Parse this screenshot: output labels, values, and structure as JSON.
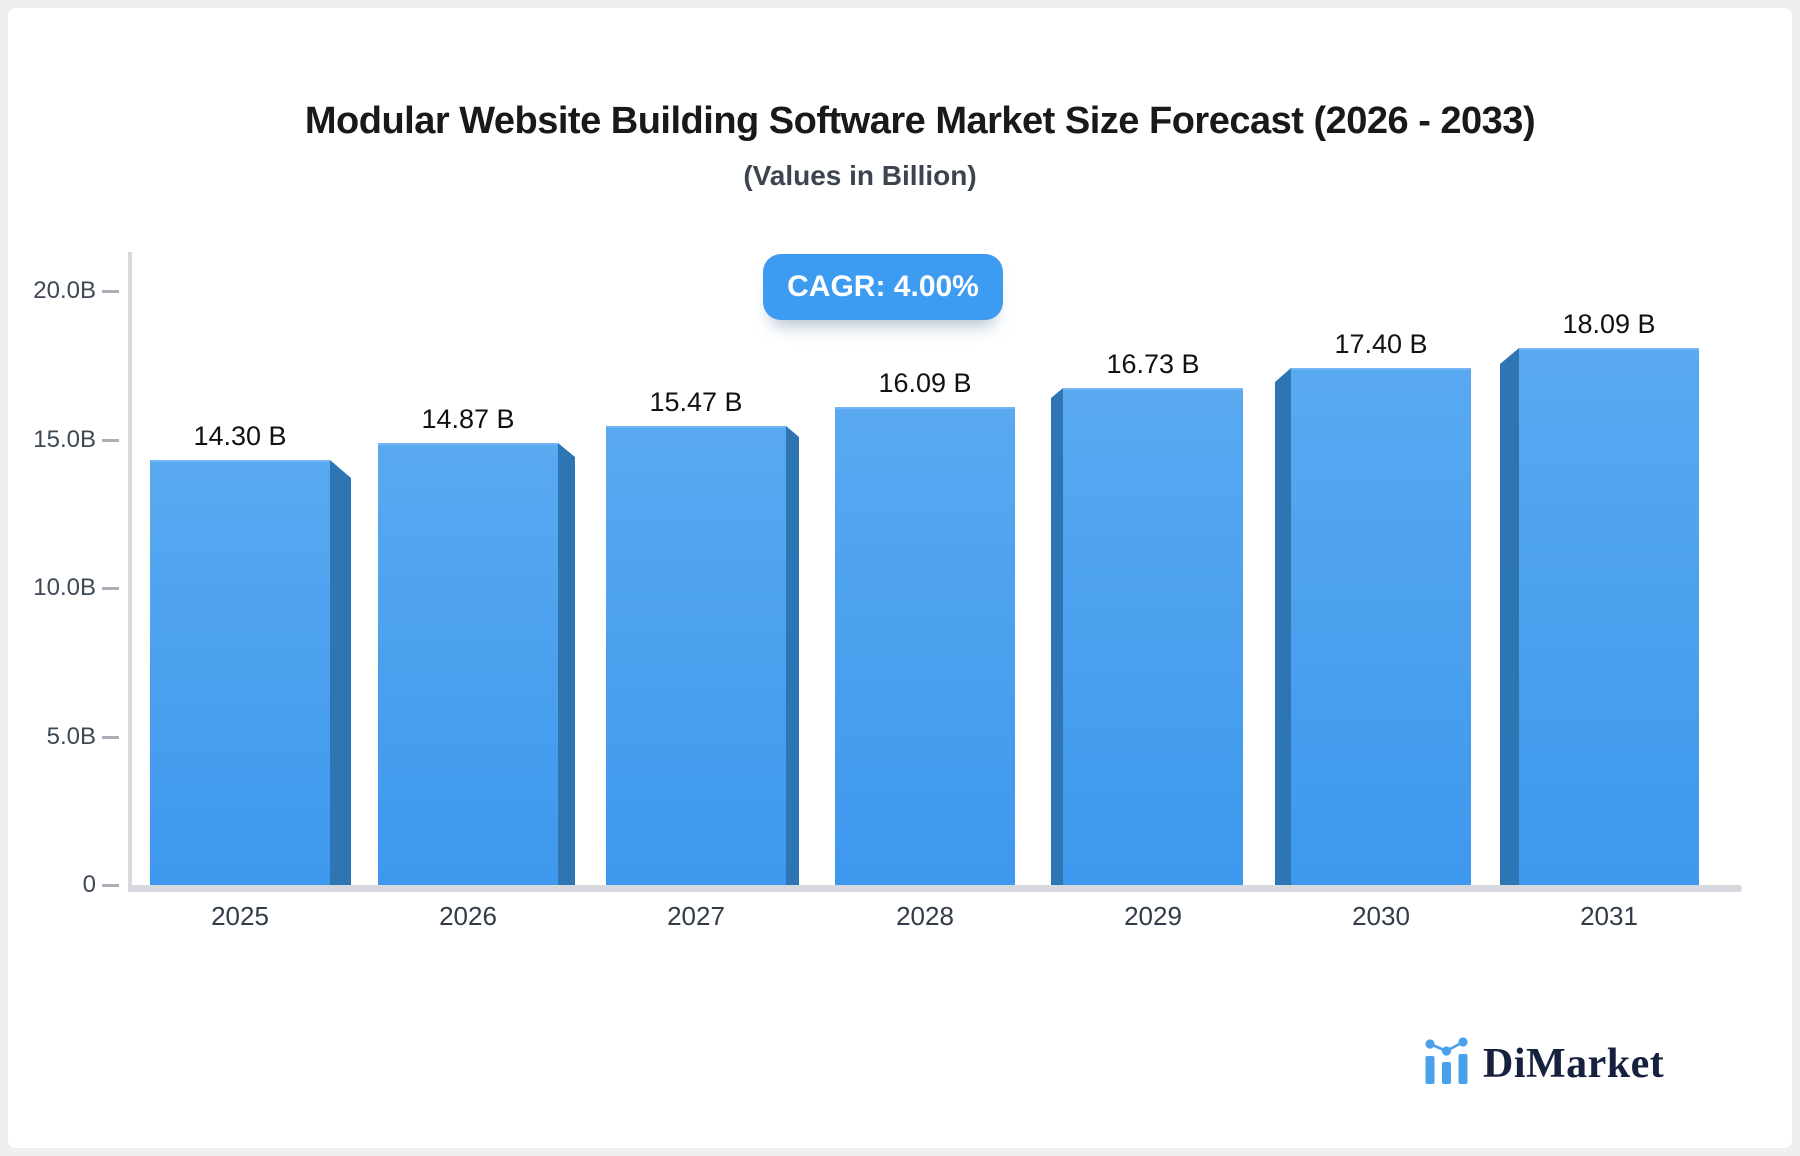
{
  "brand": {
    "name": "DiMarket"
  },
  "chart_data": {
    "type": "bar",
    "title": "Modular Website Building Software Market Size Forecast (2026 - 2033)",
    "subtitle": "(Values in Billion)",
    "annotation": "CAGR: 4.00%",
    "categories": [
      "2025",
      "2026",
      "2027",
      "2028",
      "2029",
      "2030",
      "2031"
    ],
    "values": [
      14.3,
      14.87,
      15.47,
      16.09,
      16.73,
      17.4,
      18.09
    ],
    "value_labels": [
      "14.30 B",
      "14.87 B",
      "15.47 B",
      "16.09 B",
      "16.73 B",
      "17.40 B",
      "18.09 B"
    ],
    "ylim": [
      0,
      20
    ],
    "yticks": [
      {
        "label": "20.0B",
        "value": 20
      },
      {
        "label": "15.0B",
        "value": 15
      },
      {
        "label": "10.0B",
        "value": 10
      },
      {
        "label": "5.0B",
        "value": 5
      },
      {
        "label": "0",
        "value": 0
      }
    ],
    "grid": false,
    "legend": false,
    "bar_style": "3d-perspective",
    "colors": {
      "bar_face_top": "#58a9f0",
      "bar_face_bottom": "#3e98ed",
      "bar_side": "#2e76b3",
      "badge_bg": "#3d9cf2",
      "badge_text": "#ffffff",
      "axis": "#d6d9de"
    }
  }
}
